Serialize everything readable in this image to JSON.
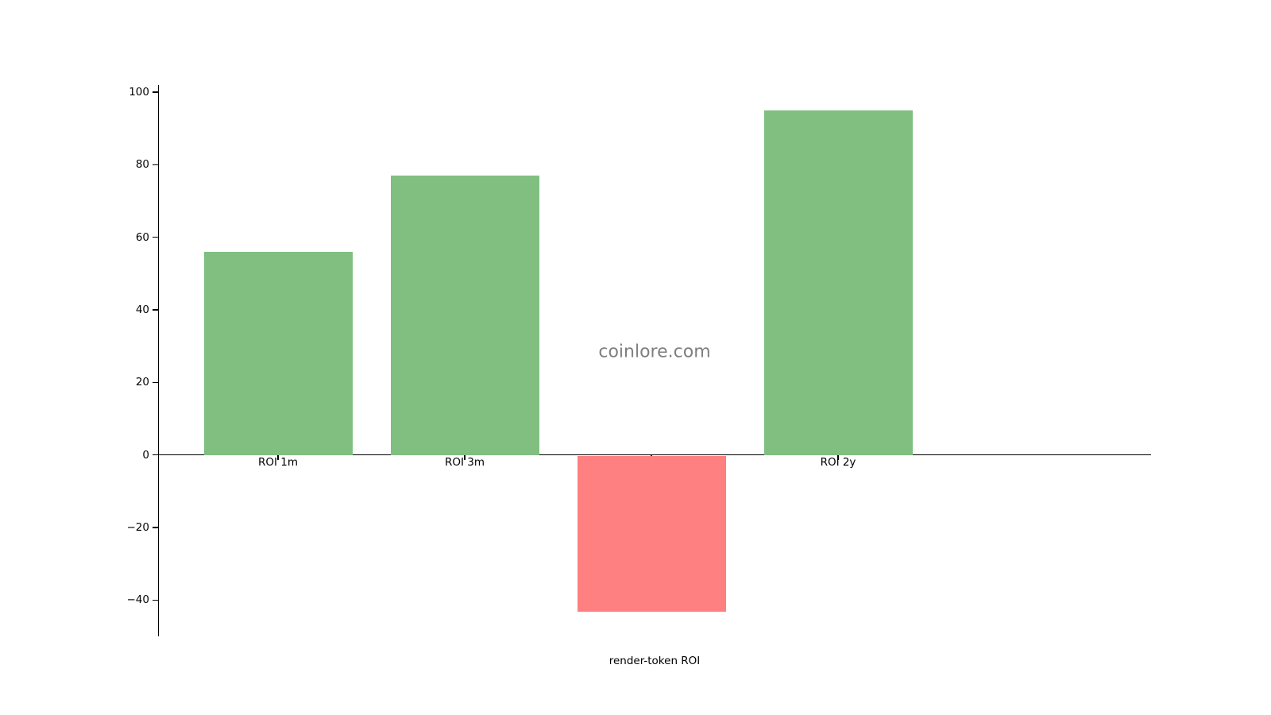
{
  "page": {
    "background": "#ffffff",
    "axis_color": "#000000"
  },
  "watermark": {
    "text": "coinlore.com",
    "color": "#7f7f7f"
  },
  "chart_data": {
    "type": "bar",
    "title": "",
    "xlabel": "render-token ROI",
    "ylabel": "",
    "categories": [
      "ROI 1m",
      "ROI 3m",
      "",
      "ROI 2y"
    ],
    "values": [
      56,
      77,
      -43,
      95
    ],
    "bar_colors": [
      "#80bf80",
      "#80bf80",
      "#ff8080",
      "#80bf80"
    ],
    "positive_color": "#80bf80",
    "negative_color": "#ff8080",
    "yticks": [
      100,
      80,
      60,
      40,
      20,
      0,
      -20,
      -40
    ],
    "ylim": [
      -50,
      102
    ],
    "grid": false,
    "legend_position": "none",
    "note": "third category tick label is hidden behind the negative (red) bar"
  }
}
